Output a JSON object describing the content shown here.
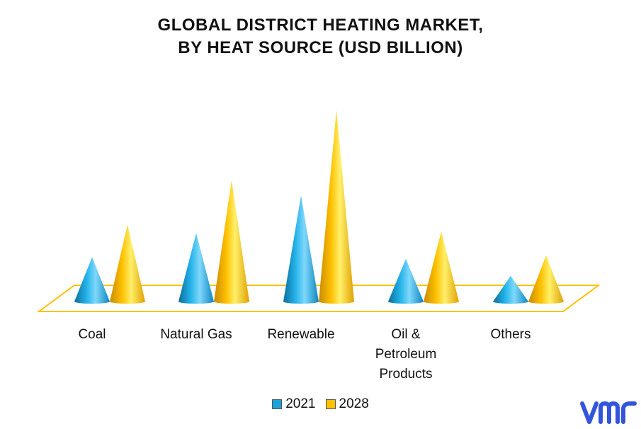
{
  "chart_data": {
    "type": "bar",
    "title_lines": [
      "GLOBAL DISTRICT HEATING MARKET,",
      "BY HEAT SOURCE (USD BILLION)"
    ],
    "categories": [
      "Coal",
      "Natural Gas",
      "Renewable",
      "Oil & Petroleum Products",
      "Others"
    ],
    "category_label_lines": [
      [
        "Coal"
      ],
      [
        "Natural Gas"
      ],
      [
        "Renewable"
      ],
      [
        "Oil &",
        "Petroleum",
        "Products"
      ],
      [
        "Others"
      ]
    ],
    "series": [
      {
        "name": "2021",
        "values": [
          2.6,
          4.0,
          6.2,
          2.5,
          1.5
        ],
        "color": "#1aa3d9"
      },
      {
        "name": "2028",
        "values": [
          4.5,
          7.1,
          11.2,
          4.1,
          2.7
        ],
        "color": "#ffc000"
      }
    ],
    "ylim": [
      0,
      12
    ],
    "grid": false,
    "legend_position": "bottom",
    "floor_color": "#ffc000"
  },
  "logo": {
    "text": "vmr",
    "color": "#3355dd"
  }
}
